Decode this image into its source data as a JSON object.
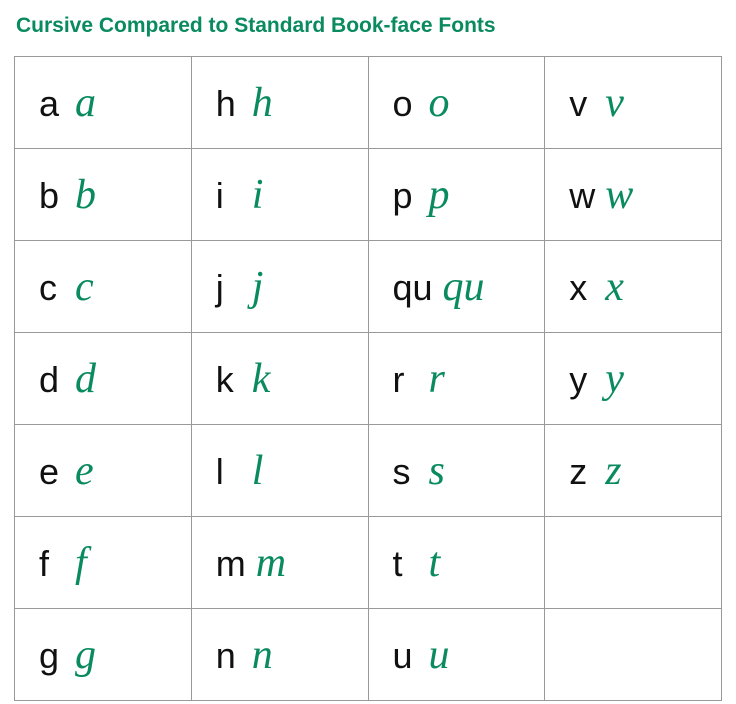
{
  "title": "Cursive Compared to Standard Book-face Fonts",
  "colors": {
    "title_color": "#0a8a5f",
    "cursive_color": "#0a8a5f",
    "standard_color": "#111111",
    "border_color": "#999999",
    "background": "#ffffff"
  },
  "typography": {
    "title_fontsize": 21,
    "standard_fontsize": 36,
    "cursive_fontsize": 42,
    "standard_family": "Arial",
    "cursive_family": "cursive"
  },
  "table": {
    "columns": 4,
    "rows": 7,
    "cells": [
      [
        {
          "std": "a",
          "cur": "a"
        },
        {
          "std": "h",
          "cur": "h"
        },
        {
          "std": "o",
          "cur": "o"
        },
        {
          "std": "v",
          "cur": "v"
        }
      ],
      [
        {
          "std": "b",
          "cur": "b"
        },
        {
          "std": "i",
          "cur": "i"
        },
        {
          "std": "p",
          "cur": "p"
        },
        {
          "std": "w",
          "cur": "w"
        }
      ],
      [
        {
          "std": "c",
          "cur": "c"
        },
        {
          "std": "j",
          "cur": "j"
        },
        {
          "std": "qu",
          "cur": "qu"
        },
        {
          "std": "x",
          "cur": "x"
        }
      ],
      [
        {
          "std": "d",
          "cur": "d"
        },
        {
          "std": "k",
          "cur": "k"
        },
        {
          "std": "r",
          "cur": "r"
        },
        {
          "std": "y",
          "cur": "y"
        }
      ],
      [
        {
          "std": "e",
          "cur": "e"
        },
        {
          "std": "l",
          "cur": "l"
        },
        {
          "std": "s",
          "cur": "s"
        },
        {
          "std": "z",
          "cur": "z"
        }
      ],
      [
        {
          "std": "f",
          "cur": "f"
        },
        {
          "std": "m",
          "cur": "m"
        },
        {
          "std": "t",
          "cur": "t"
        },
        {
          "std": "",
          "cur": ""
        }
      ],
      [
        {
          "std": "g",
          "cur": "g"
        },
        {
          "std": "n",
          "cur": "n"
        },
        {
          "std": "u",
          "cur": "u"
        },
        {
          "std": "",
          "cur": ""
        }
      ]
    ]
  }
}
